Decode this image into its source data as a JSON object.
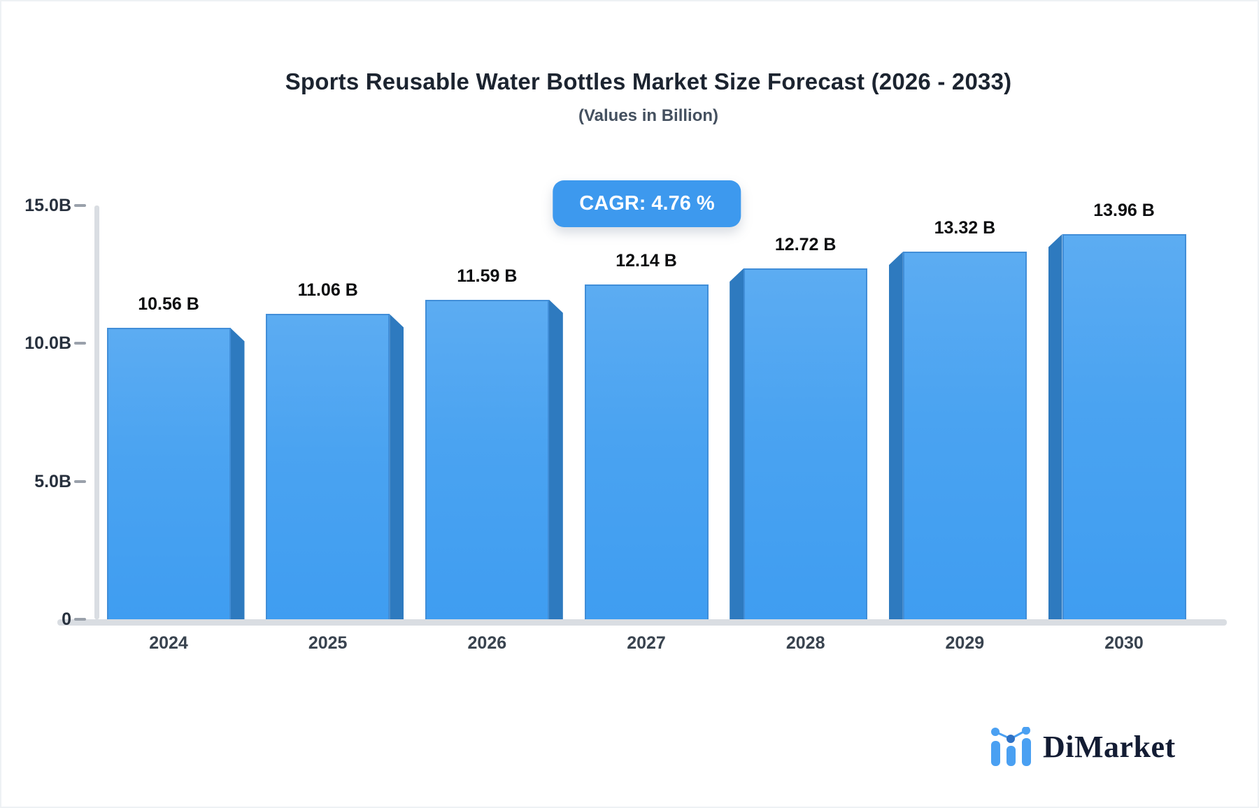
{
  "header": {
    "title": "Sports Reusable Water Bottles Market Size Forecast (2026 - 2033)",
    "subtitle": "(Values in Billion)",
    "cagr_badge": "CAGR: 4.76 %"
  },
  "chart_data": {
    "type": "bar",
    "title": "Sports Reusable Water Bottles Market Size Forecast (2026 - 2033)",
    "subtitle": "(Values in Billion)",
    "categories": [
      "2024",
      "2025",
      "2026",
      "2027",
      "2028",
      "2029",
      "2030"
    ],
    "values": [
      10.56,
      11.06,
      11.59,
      12.14,
      12.72,
      13.32,
      13.96
    ],
    "value_labels": [
      "10.56 B",
      "11.06 B",
      "11.59 B",
      "12.14 B",
      "12.72 B",
      "13.32 B",
      "13.96 B"
    ],
    "cagr_percent": 4.76,
    "xlabel": "",
    "ylabel": "",
    "ylim": [
      0,
      15
    ],
    "yticks": [
      {
        "label": "15.0B",
        "value": 15
      },
      {
        "label": "10.0B",
        "value": 10
      },
      {
        "label": "5.0B",
        "value": 5
      },
      {
        "label": "0",
        "value": 0
      }
    ],
    "grid": false,
    "legend": false,
    "bar_style": "3d-extruded-toward-center"
  },
  "colors": {
    "bar_face_top": "#5cacf2",
    "bar_face_bottom": "#3f9df1",
    "bar_side": "#2e7abf",
    "bar_border": "#418ed8",
    "badge_bg": "#3d99ee",
    "badge_text": "#ffffff",
    "axis_gray": "#d9dde2",
    "tick_gray": "#9aa1ab",
    "logo_blue": "#4aa0f2",
    "logo_dot_dark": "#2e71c5",
    "logo_text": "#131c33"
  },
  "footer": {
    "logo_text": "DiMarket"
  }
}
